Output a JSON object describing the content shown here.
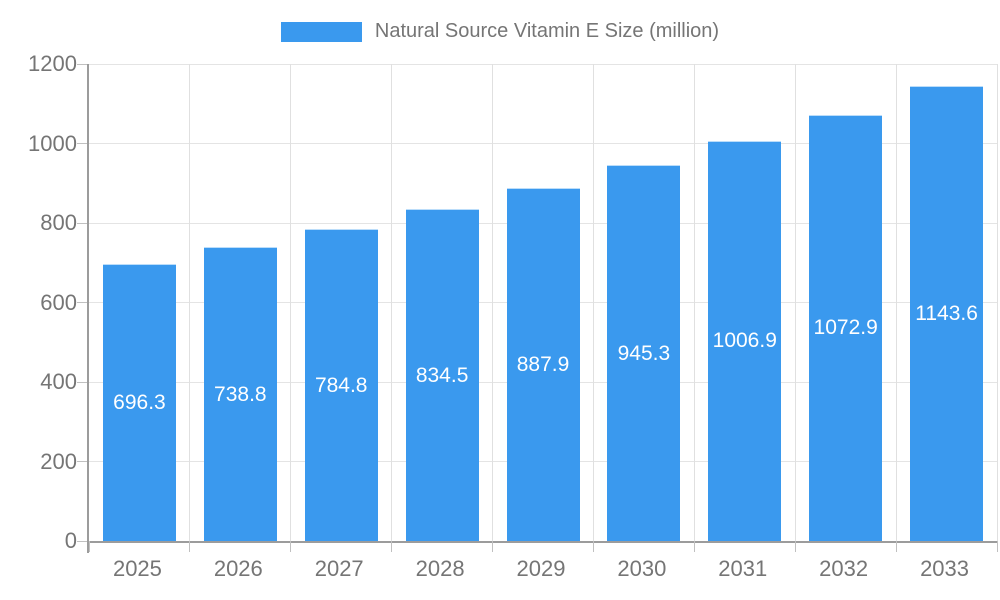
{
  "legend": {
    "label": "Natural Source Vitamin E Size (million)"
  },
  "chart_data": {
    "type": "bar",
    "title": "Natural Source Vitamin E Size (million)",
    "categories": [
      "2025",
      "2026",
      "2027",
      "2028",
      "2029",
      "2030",
      "2031",
      "2032",
      "2033"
    ],
    "values": [
      696.3,
      738.8,
      784.8,
      834.5,
      887.9,
      945.3,
      1006.9,
      1072.9,
      1143.6
    ],
    "value_labels": [
      "696.3",
      "738.8",
      "784.8",
      "834.5",
      "887.9",
      "945.3",
      "1006.9",
      "1072.9",
      "1143.6"
    ],
    "xlabel": "",
    "ylabel": "",
    "ylim": [
      0,
      1200
    ],
    "yticks": [
      0,
      200,
      400,
      600,
      800,
      1000,
      1200
    ],
    "grid": true,
    "legend_position": "top-center",
    "value_label_position": "inside-center",
    "colors": {
      "bar": "#3A99EE",
      "grid": "#e4e4e4",
      "axis": "#9c9c9c",
      "tick_text": "#757575",
      "value_text": "#ffffff",
      "legend_text": "#757575"
    }
  }
}
